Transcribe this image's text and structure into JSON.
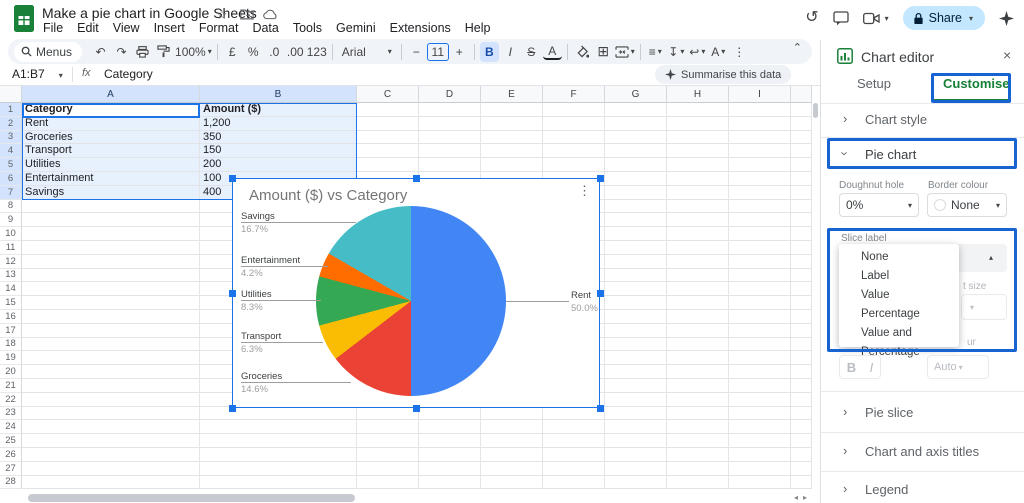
{
  "topbar": {
    "title": "Make a pie chart in Google Sheets",
    "menus": [
      "File",
      "Edit",
      "View",
      "Insert",
      "Format",
      "Data",
      "Tools",
      "Gemini",
      "Extensions",
      "Help"
    ],
    "share_label": "Share"
  },
  "toolbar": {
    "menus_label": "Menus",
    "undo": "↶",
    "redo": "↷",
    "zoom_value": "100%",
    "currency": "£",
    "percent": "%",
    "decimal_decrease": ".0",
    "decimal_increase": ".00",
    "more_formats": "123",
    "font_family": "Arial",
    "minus": "−",
    "font_size": "11",
    "plus": "+",
    "bold": "B",
    "italic": "I",
    "strikethrough": "S",
    "text_colour": "A",
    "borders": "⊞",
    "align": "≡",
    "vertical_align": "↧",
    "text_wrap": "↩",
    "text_rotate": "A",
    "more_dots": "⋮",
    "collapse": "⌃"
  },
  "formula_bar": {
    "name_box": "A1:B7",
    "fx_label": "fx",
    "value": "Category",
    "summarise_label": "Summarise this data"
  },
  "sheet": {
    "columns": [
      "A",
      "B",
      "C",
      "D",
      "E",
      "F",
      "G",
      "H",
      "I",
      ""
    ],
    "visible_row_count": 28,
    "rows": [
      {
        "a": "Category",
        "b": "Amount ($)"
      },
      {
        "a": "Rent",
        "b": "1,200"
      },
      {
        "a": "Groceries",
        "b": "350"
      },
      {
        "a": "Transport",
        "b": "150"
      },
      {
        "a": "Utilities",
        "b": "200"
      },
      {
        "a": "Entertainment",
        "b": "100"
      },
      {
        "a": "Savings",
        "b": "400"
      }
    ]
  },
  "chart_data": {
    "type": "pie",
    "title": "Amount ($) vs Category",
    "categories": [
      "Rent",
      "Groceries",
      "Transport",
      "Utilities",
      "Entertainment",
      "Savings"
    ],
    "values": [
      1200,
      350,
      150,
      200,
      100,
      400
    ],
    "percent_labels": [
      "50.0%",
      "14.6%",
      "6.3%",
      "8.3%",
      "4.2%",
      "16.7%"
    ],
    "colors": [
      "#4285F4",
      "#EA4335",
      "#FBBC04",
      "#34A853",
      "#FF6D01",
      "#46BDC6"
    ],
    "start_angle_deg": 0,
    "direction": "clockwise",
    "legend_position": "outside-labels",
    "menu_dots": "⋮"
  },
  "panel": {
    "title": "Chart editor",
    "close": "×",
    "tab_setup": "Setup",
    "tab_customise": "Customise",
    "section_chart_style": "Chart style",
    "section_pie_chart": "Pie chart",
    "doughnut_hole_label": "Doughnut hole",
    "doughnut_hole_value": "0%",
    "border_colour_label": "Border colour",
    "border_colour_value": "None",
    "slice_label_label": "Slice label",
    "slice_label_options": [
      "None",
      "Label",
      "Value",
      "Percentage",
      "Value and Percentage"
    ],
    "font_size_fragment": "t size",
    "text_colour_fragment": "ur",
    "bold": "B",
    "italic": "I",
    "auto_value": "Auto",
    "section_pie_slice": "Pie slice",
    "section_chart_axis_titles": "Chart and axis titles",
    "section_legend": "Legend"
  },
  "colors": {
    "accent_blue": "#1a73e8",
    "annotation_blue": "#1763d2",
    "tab_active_green": "#188038",
    "share_pill_bg": "#c2e7ff",
    "selection_fill": "#e7f0fd",
    "selected_header": "#d3e3fd"
  }
}
